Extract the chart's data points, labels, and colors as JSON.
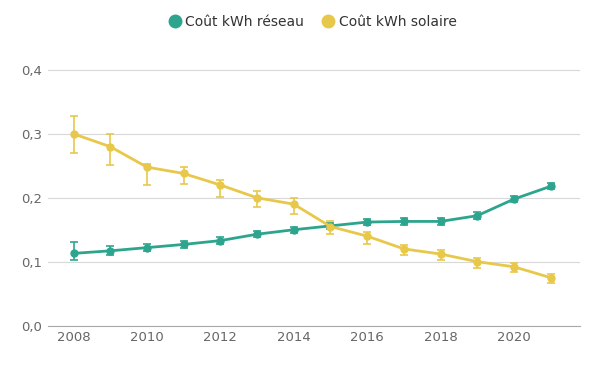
{
  "years": [
    2008,
    2009,
    2010,
    2011,
    2012,
    2013,
    2014,
    2015,
    2016,
    2017,
    2018,
    2019,
    2020,
    2021
  ],
  "reseau_values": [
    0.113,
    0.117,
    0.122,
    0.127,
    0.133,
    0.143,
    0.15,
    0.156,
    0.162,
    0.163,
    0.163,
    0.172,
    0.198,
    0.218
  ],
  "solaire_values": [
    0.3,
    0.28,
    0.248,
    0.238,
    0.22,
    0.2,
    0.19,
    0.155,
    0.14,
    0.12,
    0.112,
    0.1,
    0.092,
    0.075
  ],
  "solaire_yerr_low": [
    0.03,
    0.028,
    0.028,
    0.016,
    0.018,
    0.015,
    0.015,
    0.012,
    0.012,
    0.01,
    0.01,
    0.01,
    0.008,
    0.008
  ],
  "solaire_yerr_high": [
    0.028,
    0.02,
    0.005,
    0.01,
    0.008,
    0.01,
    0.01,
    0.008,
    0.006,
    0.006,
    0.006,
    0.006,
    0.006,
    0.006
  ],
  "reseau_yerr_low": [
    0.01,
    0.006,
    0.005,
    0.005,
    0.005,
    0.005,
    0.005,
    0.005,
    0.005,
    0.005,
    0.005,
    0.005,
    0.005,
    0.005
  ],
  "reseau_yerr_high": [
    0.018,
    0.008,
    0.005,
    0.005,
    0.005,
    0.005,
    0.005,
    0.005,
    0.005,
    0.005,
    0.005,
    0.005,
    0.005,
    0.005
  ],
  "reseau_color": "#2da58e",
  "solaire_color": "#e8c84a",
  "reseau_label": "Coût kWh réseau",
  "solaire_label": "Coût kWh solaire",
  "ylim": [
    0.0,
    0.44
  ],
  "yticks": [
    0.0,
    0.1,
    0.2,
    0.3,
    0.4
  ],
  "ytick_labels": [
    "0,0",
    "0,1",
    "0,2",
    "0,3",
    "0,4"
  ],
  "xticks": [
    2008,
    2010,
    2012,
    2014,
    2016,
    2018,
    2020
  ],
  "xlim_left": 2007.3,
  "xlim_right": 2021.8,
  "background_color": "#ffffff",
  "grid_color": "#d8d8d8",
  "tick_color": "#666666"
}
